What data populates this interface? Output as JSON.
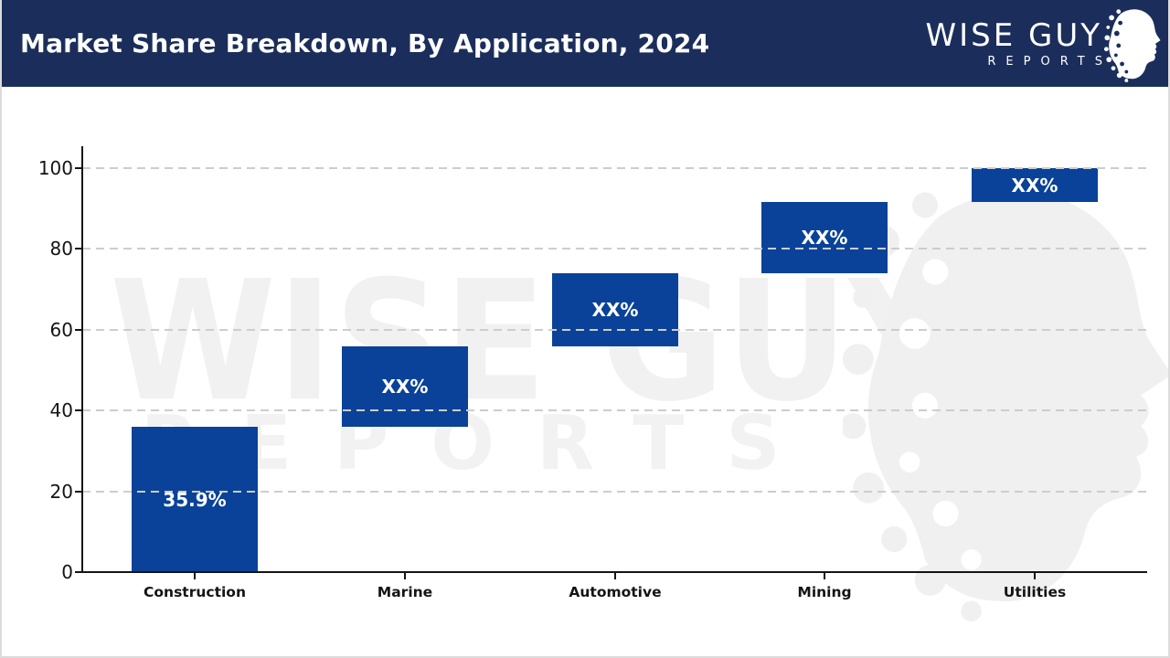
{
  "header": {
    "title": "Market Share Breakdown, By Application, 2024",
    "bg_color": "#1b2e5b",
    "logo": {
      "wordmark": "WISE GUY",
      "subtitle": "REPORTS"
    }
  },
  "watermark": {
    "wordmark": "WISE GUY",
    "subtitle": "REPORTS"
  },
  "chart_data": {
    "type": "bar",
    "variant": "waterfall",
    "title": "Market Share Breakdown, By Application, 2024",
    "categories": [
      "Construction",
      "Marine",
      "Automotive",
      "Mining",
      "Utilities"
    ],
    "series": [
      {
        "name": "Market share (%)",
        "segments": [
          {
            "category": "Construction",
            "start": 0,
            "end": 35.9,
            "label": "35.9%"
          },
          {
            "category": "Marine",
            "start": 35.9,
            "end": 55.9,
            "label": "XX%"
          },
          {
            "category": "Automotive",
            "start": 55.9,
            "end": 74.0,
            "label": "XX%"
          },
          {
            "category": "Mining",
            "start": 74.0,
            "end": 91.6,
            "label": "XX%"
          },
          {
            "category": "Utilities",
            "start": 91.6,
            "end": 100,
            "label": "XX%"
          }
        ]
      }
    ],
    "xlabel": "",
    "ylabel": "",
    "ylim": [
      0,
      105
    ],
    "yticks": [
      0,
      20,
      40,
      60,
      80,
      100
    ],
    "grid": "horizontal-dashed",
    "legend": "none",
    "bar_color": "#094298",
    "bar_label_color": "#ffffff"
  }
}
